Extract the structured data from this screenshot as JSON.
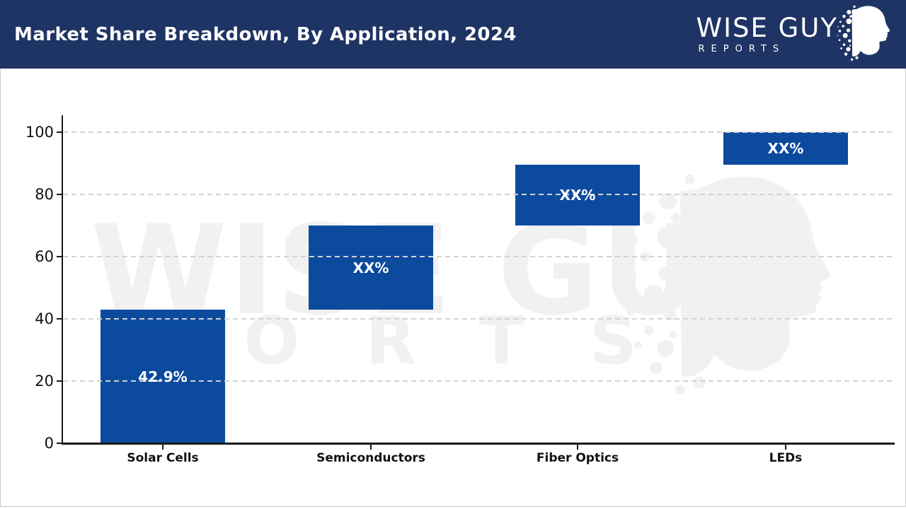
{
  "header": {
    "title": "Market Share Breakdown, By Application, 2024",
    "logo": {
      "line1": "WISE GUY",
      "line2": "REPORTS"
    }
  },
  "watermark": {
    "line1": "WISE GU",
    "line2": "PORTS"
  },
  "colors": {
    "header_bg": "#1e3464",
    "bar": "#0c4a9e",
    "bar_label": "#ffffff",
    "grid": "#d2d2d2",
    "axis": "#1a1a1a",
    "watermark": "#f1f1f1"
  },
  "chart_data": {
    "type": "bar",
    "subtype": "waterfall",
    "title": "Market Share Breakdown, By Application, 2024",
    "categories": [
      "Solar Cells",
      "Semiconductors",
      "Fiber Optics",
      "LEDs"
    ],
    "segments": [
      {
        "category": "Solar Cells",
        "start": 0,
        "end": 42.9,
        "label": "42.9%"
      },
      {
        "category": "Semiconductors",
        "start": 42.9,
        "end": 69.9,
        "label": "XX%"
      },
      {
        "category": "Fiber Optics",
        "start": 69.9,
        "end": 89.6,
        "label": "XX%"
      },
      {
        "category": "LEDs",
        "start": 89.6,
        "end": 100,
        "label": "XX%"
      }
    ],
    "ylabel": "",
    "xlabel": "",
    "yticks": [
      0,
      20,
      40,
      60,
      80,
      100
    ],
    "ylim": [
      0,
      105
    ],
    "grid": "horizontal-dashed",
    "legend": "none",
    "bar_value_labels_inside": true
  }
}
